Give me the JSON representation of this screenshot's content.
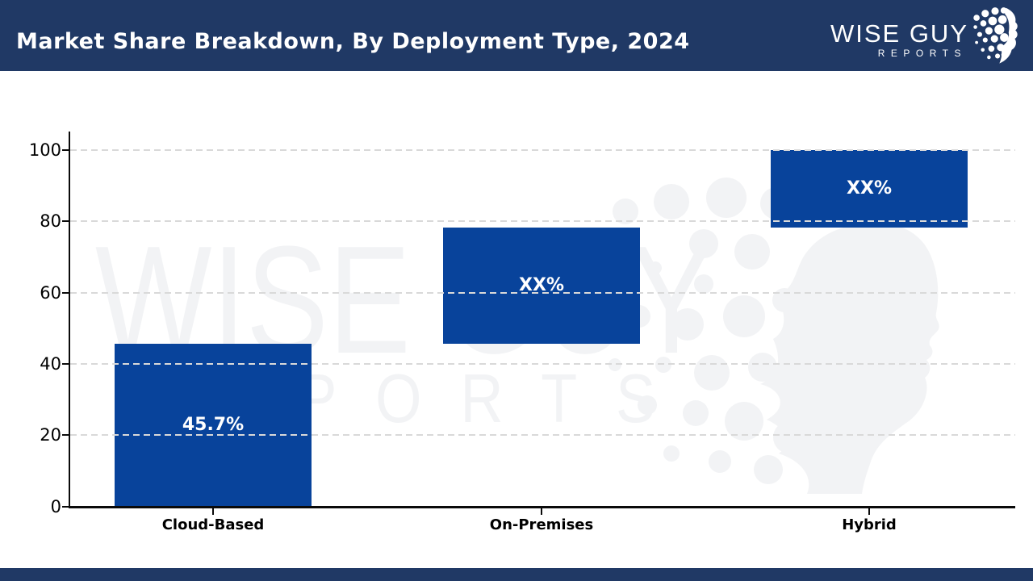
{
  "header": {
    "title": "Market Share Breakdown, By Deployment Type, 2024",
    "logo": {
      "line1": "WISE GUY",
      "line2": "REPORTS"
    }
  },
  "watermark": {
    "line1": "WISE GUY",
    "line2": "REPORTS"
  },
  "chart_data": {
    "type": "bar",
    "variant": "waterfall-stacked",
    "title": "Market Share Breakdown, By Deployment Type, 2024",
    "categories": [
      "Cloud-Based",
      "On-Premises",
      "Hybrid"
    ],
    "segments": [
      {
        "category": "Cloud-Based",
        "start": 0,
        "end": 45.7,
        "value": 45.7,
        "label": "45.7%"
      },
      {
        "category": "On-Premises",
        "start": 45.7,
        "end": 78.3,
        "value_estimated": 32.6,
        "label": "XX%"
      },
      {
        "category": "Hybrid",
        "start": 78.3,
        "end": 100,
        "value_estimated": 21.7,
        "label": "XX%"
      }
    ],
    "xlabel": "",
    "ylabel": "",
    "ylim": [
      0,
      100
    ],
    "yticks": [
      "0",
      "20",
      "40",
      "60",
      "80",
      "100"
    ],
    "grid": "horizontal-dashed",
    "legend": "none",
    "bar_color": "#08439b",
    "bar_label_color": "#ffffff"
  },
  "colors": {
    "header_bg": "#203965",
    "footer_bg": "#203965",
    "bar": "#08439b",
    "gridline": "#d9d9d9",
    "axis": "#0a0a0a",
    "watermark": "#f2f3f5",
    "background": "#ffffff"
  }
}
